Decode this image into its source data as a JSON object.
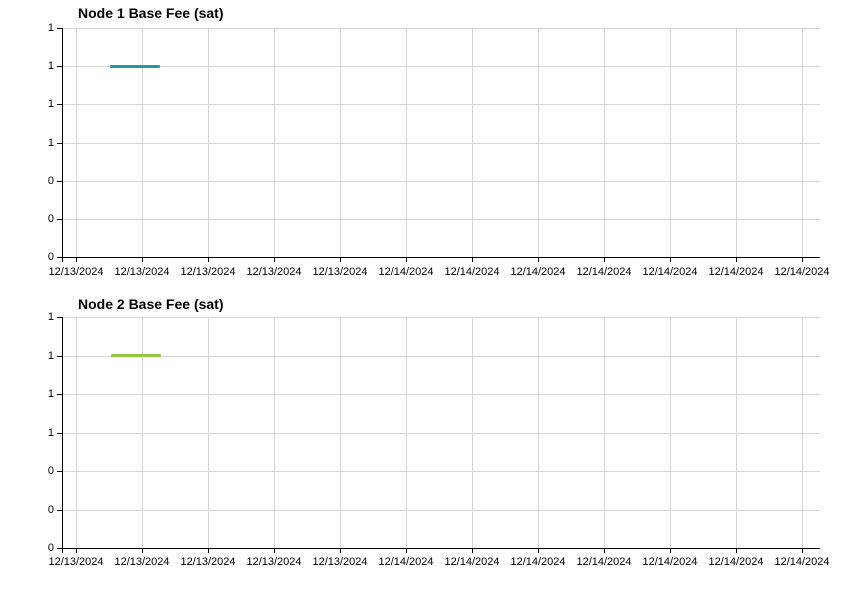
{
  "page": {
    "background_color": "#ffffff",
    "grid_color": "#d6d6d6",
    "axis_color": "#000000",
    "text_color": "#000000"
  },
  "chart_data": [
    {
      "type": "line",
      "title": "Node 1 Base Fee (sat)",
      "xlabel": "",
      "ylabel": "",
      "grid": true,
      "legend": false,
      "y_axis": {
        "range": [
          0,
          1.2
        ],
        "tick_values_inferred": [
          1.2,
          1.0,
          0.8,
          0.6,
          0.4,
          0.2,
          0
        ],
        "tick_labels_displayed": [
          "1",
          "1",
          "1",
          "1",
          "0",
          "0",
          "0"
        ]
      },
      "x_axis": {
        "tick_labels": [
          "12/13/2024",
          "12/13/2024",
          "12/13/2024",
          "12/13/2024",
          "12/13/2024",
          "12/14/2024",
          "12/14/2024",
          "12/14/2024",
          "12/14/2024",
          "12/14/2024",
          "12/14/2024",
          "12/14/2024"
        ]
      },
      "series": [
        {
          "name": "Node 1 Base Fee",
          "color": "#1d9e9e",
          "y_value": 1,
          "points": [
            {
              "x": "12/13/2024",
              "y": 1
            },
            {
              "x": "12/13/2024",
              "y": 1
            }
          ],
          "x_extent_frac_of_plot": [
            0.063,
            0.129
          ]
        }
      ]
    },
    {
      "type": "line",
      "title": "Node 2 Base Fee (sat)",
      "xlabel": "",
      "ylabel": "",
      "grid": true,
      "legend": false,
      "y_axis": {
        "range": [
          0,
          1.2
        ],
        "tick_values_inferred": [
          1.2,
          1.0,
          0.8,
          0.6,
          0.4,
          0.2,
          0
        ],
        "tick_labels_displayed": [
          "1",
          "1",
          "1",
          "1",
          "0",
          "0",
          "0"
        ]
      },
      "x_axis": {
        "tick_labels": [
          "12/13/2024",
          "12/13/2024",
          "12/13/2024",
          "12/13/2024",
          "12/13/2024",
          "12/14/2024",
          "12/14/2024",
          "12/14/2024",
          "12/14/2024",
          "12/14/2024",
          "12/14/2024",
          "12/14/2024"
        ]
      },
      "series": [
        {
          "name": "Node 2 Base Fee",
          "color": "#8fc73e",
          "y_value": 1,
          "points": [
            {
              "x": "12/13/2024",
              "y": 1
            },
            {
              "x": "12/13/2024",
              "y": 1
            }
          ],
          "x_extent_frac_of_plot": [
            0.065,
            0.131
          ]
        }
      ]
    }
  ]
}
